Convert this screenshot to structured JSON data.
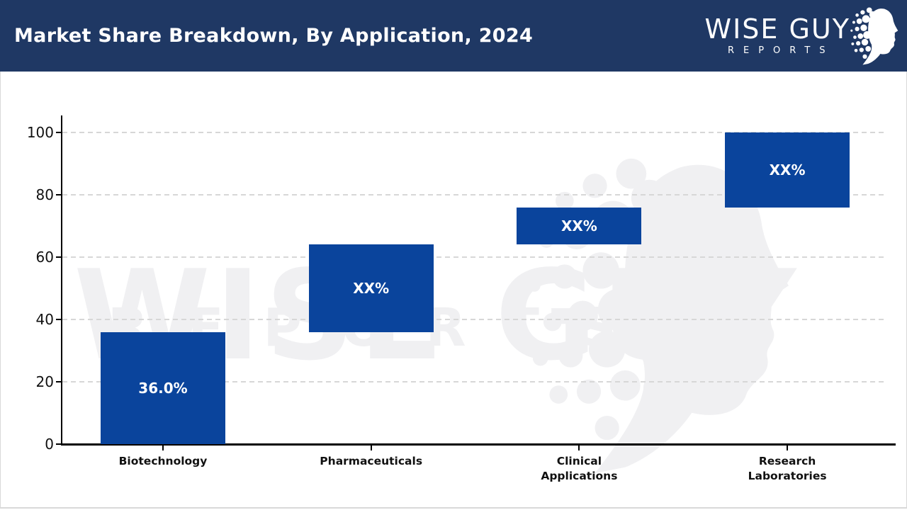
{
  "header": {
    "title": "Market Share Breakdown, By Application, 2024",
    "logo": {
      "line1": "WISE GUY",
      "line2": "REPORTS"
    }
  },
  "watermark": {
    "line1": "WISE GUY",
    "line2": "REPORTS"
  },
  "chart_data": {
    "type": "bar",
    "subtype": "waterfall",
    "title": "Market Share Breakdown, By Application, 2024",
    "categories": [
      "Biotechnology",
      "Pharmaceuticals",
      "Clinical Applications",
      "Research Laboratories"
    ],
    "category_label_lines": [
      [
        "Biotechnology"
      ],
      [
        "Pharmaceuticals"
      ],
      [
        "Clinical",
        "Applications"
      ],
      [
        "Research",
        "Laboratories"
      ]
    ],
    "segments": [
      {
        "category": "Biotechnology",
        "start": 0,
        "end": 36,
        "label": "36.0%"
      },
      {
        "category": "Pharmaceuticals",
        "start": 36,
        "end": 64,
        "label": "XX%"
      },
      {
        "category": "Clinical Applications",
        "start": 64,
        "end": 76,
        "label": "XX%"
      },
      {
        "category": "Research Laboratories",
        "start": 76,
        "end": 100,
        "label": "XX%"
      }
    ],
    "bar_labels": [
      "36.0%",
      "XX%",
      "XX%",
      "XX%"
    ],
    "xlabel": "",
    "ylabel": "",
    "ylim": [
      0,
      100
    ],
    "yticks": [
      0,
      20,
      40,
      60,
      80,
      100
    ],
    "grid": "horizontal-dashed",
    "legend": "none"
  },
  "colors": {
    "header_bg": "#1f3864",
    "bar": "#0a449c",
    "grid": "#d7d7d7",
    "axis": "#000000",
    "watermark": "#f0f0f2",
    "page_border": "#d9d9d9"
  }
}
